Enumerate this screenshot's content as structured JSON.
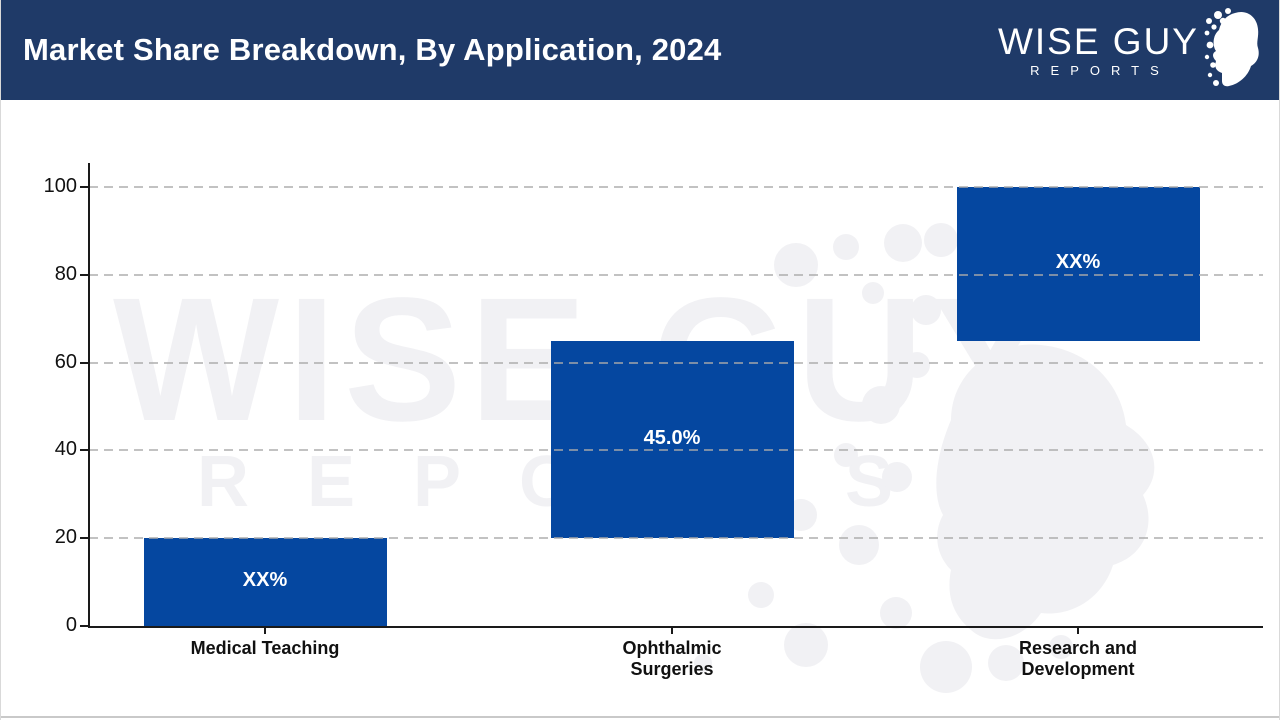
{
  "header": {
    "title": "Market Share Breakdown, By Application, 2024",
    "logo": {
      "line1": "WISE GUY",
      "line2": "REPORTS"
    }
  },
  "watermark": {
    "line1": "WISE GUY",
    "line2": "REPORTS"
  },
  "chart_data": {
    "type": "bar",
    "subtype": "floating-waterfall-segments",
    "title": "Market Share Breakdown, By Application, 2024",
    "categories": [
      "Medical Teaching",
      "Ophthalmic Surgeries",
      "Research and Development"
    ],
    "segments": [
      {
        "category": "Medical Teaching",
        "start": 0,
        "end": 20,
        "label": "XX%"
      },
      {
        "category": "Ophthalmic Surgeries",
        "start": 20,
        "end": 65,
        "label": "45.0%"
      },
      {
        "category": "Research and Development",
        "start": 65,
        "end": 100,
        "label": "XX%"
      }
    ],
    "ylim": [
      0,
      100
    ],
    "yticks": [
      0,
      20,
      40,
      60,
      80,
      100
    ],
    "grid": "dashed horizontal gridlines drawn over bars",
    "legend": "none",
    "xlabel": "",
    "ylabel": ""
  },
  "colors": {
    "header_bg": "#1f3a68",
    "bar": "#0547a0",
    "bar_label": "#ffffff",
    "axis": "#1a1a1a",
    "gridline": "#c8c8c8",
    "watermark": "#f1f1f4",
    "tick_text": "#111111"
  }
}
